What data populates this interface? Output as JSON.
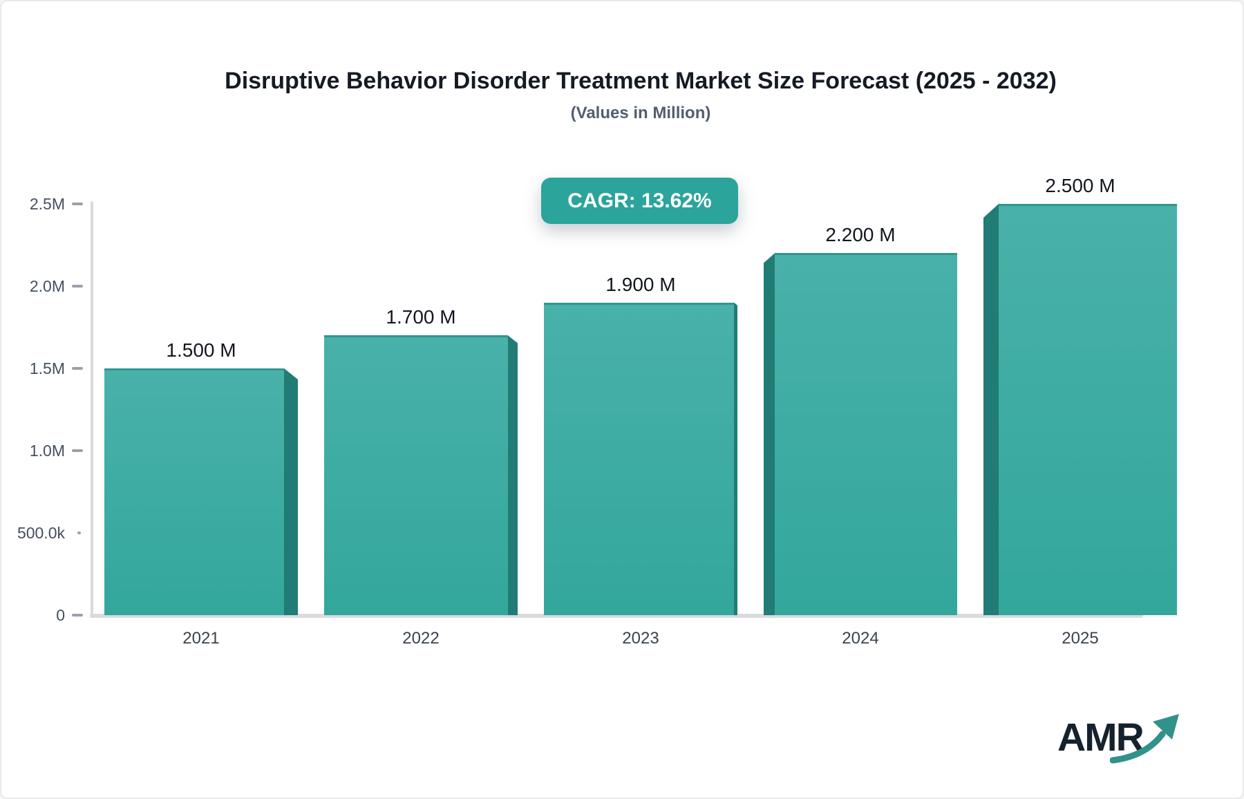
{
  "chart_data": {
    "type": "bar",
    "title": "Disruptive Behavior Disorder Treatment Market Size Forecast (2025 - 2032)",
    "subtitle": "(Values in Million)",
    "annotations": {
      "cagr_badge": "CAGR: 13.62%"
    },
    "categories": [
      "2021",
      "2022",
      "2023",
      "2024",
      "2025"
    ],
    "values_millions": [
      1.5,
      1.7,
      1.9,
      2.2,
      2.5
    ],
    "bar_value_labels": [
      "1.500 M",
      "1.700 M",
      "1.900 M",
      "2.200 M",
      "2.500 M"
    ],
    "xlabel": "",
    "ylabel": "",
    "ylim_millions": [
      0,
      2.5
    ],
    "y_ticks": [
      {
        "label": "2.5M",
        "value_millions": 2.5
      },
      {
        "label": "2.0M",
        "value_millions": 2.0
      },
      {
        "label": "1.5M",
        "value_millions": 1.5
      },
      {
        "label": "1.0M",
        "value_millions": 1.0
      },
      {
        "label": "500.0k",
        "value_millions": 0.5
      },
      {
        "label": "0",
        "value_millions": 0
      }
    ],
    "grid": "off",
    "legend": "none",
    "colors": {
      "bar_gradient_top": "#49b1a9",
      "bar_gradient_bottom": "#33a79c",
      "bar_top_edge": "#2e978e",
      "bar_bevel": "#207c74",
      "badge_bg": "#2ba49b",
      "badge_text": "#ffffff",
      "title_text": "#151a24",
      "subtitle_text": "#515e6e",
      "axis_text": "#454f5e",
      "axis_line": "#d9dbde",
      "logo_text": "#15222e",
      "logo_arrow": "#30928a"
    }
  },
  "branding": {
    "logo_text": "AMR"
  }
}
